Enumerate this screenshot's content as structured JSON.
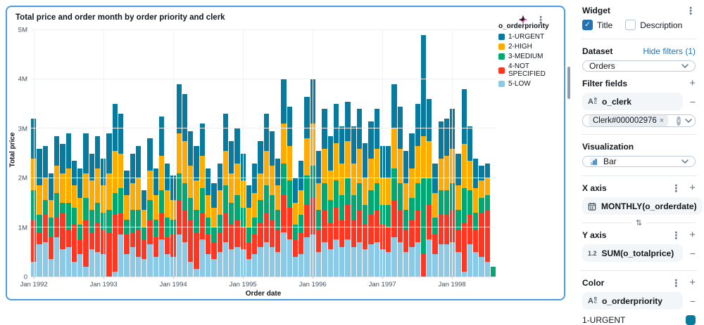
{
  "chart_card": {
    "title": "Total price and order month by order priority and clerk",
    "legend_title": "o_orderpriority",
    "x_axis_label": "Order date",
    "y_axis_label": "Total price",
    "icons": {
      "assistant": "ai-sparkle",
      "menu": "⋮"
    }
  },
  "chart_data": {
    "type": "bar",
    "stacked": true,
    "title": "Total price and order month by order priority and clerk",
    "xlabel": "Order date",
    "ylabel": "Total price",
    "ylim_millions": [
      0,
      5
    ],
    "y_ticks": [
      "0",
      "1M",
      "2M",
      "3M",
      "4M",
      "5M"
    ],
    "x_tick_positions": [
      0,
      12,
      24,
      36,
      48,
      60,
      72
    ],
    "x_tick_labels": [
      "Jan 1992",
      "Jan 1993",
      "Jan 1994",
      "Jan 1995",
      "Jan 1996",
      "Jan 1997",
      "Jan 1998"
    ],
    "legend_position": "top-right",
    "grid": true,
    "stack_order_bottom_to_top": [
      "5-LOW",
      "4-NOT SPECIFIED",
      "3-MEDIUM",
      "2-HIGH",
      "1-URGENT"
    ],
    "x_months": [
      "1992-01",
      "1992-02",
      "1992-03",
      "1992-04",
      "1992-05",
      "1992-06",
      "1992-07",
      "1992-08",
      "1992-09",
      "1992-10",
      "1992-11",
      "1992-12",
      "1993-01",
      "1993-02",
      "1993-03",
      "1993-04",
      "1993-05",
      "1993-06",
      "1993-07",
      "1993-08",
      "1993-09",
      "1993-10",
      "1993-11",
      "1993-12",
      "1994-01",
      "1994-02",
      "1994-03",
      "1994-04",
      "1994-05",
      "1994-06",
      "1994-07",
      "1994-08",
      "1994-09",
      "1994-10",
      "1994-11",
      "1994-12",
      "1995-01",
      "1995-02",
      "1995-03",
      "1995-04",
      "1995-05",
      "1995-06",
      "1995-07",
      "1995-08",
      "1995-09",
      "1995-10",
      "1995-11",
      "1995-12",
      "1996-01",
      "1996-02",
      "1996-03",
      "1996-04",
      "1996-05",
      "1996-06",
      "1996-07",
      "1996-08",
      "1996-09",
      "1996-10",
      "1996-11",
      "1996-12",
      "1997-01",
      "1997-02",
      "1997-03",
      "1997-04",
      "1997-05",
      "1997-06",
      "1997-07",
      "1997-08",
      "1997-09",
      "1997-10",
      "1997-11",
      "1997-12",
      "1998-01",
      "1998-02",
      "1998-03",
      "1998-04",
      "1998-05",
      "1998-06",
      "1998-07",
      "1998-08"
    ],
    "series": [
      {
        "name": "1-URGENT",
        "color": "#077A9D",
        "values_millions": [
          0.8,
          0.75,
          0.65,
          0.55,
          0.6,
          0.6,
          0.7,
          0.5,
          0.6,
          0.8,
          0.55,
          0.65,
          0.55,
          0.8,
          0.95,
          0.8,
          0.5,
          0.6,
          0.65,
          0.4,
          0.65,
          0.55,
          0.8,
          0.55,
          0.5,
          1.0,
          0.95,
          0.7,
          0.7,
          0.65,
          0.55,
          0.5,
          0.55,
          0.75,
          0.65,
          0.7,
          0.55,
          0.45,
          0.6,
          0.65,
          0.75,
          0.7,
          0.55,
          0.9,
          0.8,
          0.5,
          0.6,
          0.85,
          0.9,
          0.65,
          0.8,
          0.7,
          0.8,
          0.75,
          0.8,
          0.75,
          0.8,
          0.7,
          0.75,
          0.8,
          0.65,
          0.65,
          0.9,
          0.85,
          0.65,
          0.7,
          0.85,
          2.05,
          0.85,
          0.6,
          0.75,
          0.75,
          0.8,
          0.65,
          1.1,
          0.7,
          0.6,
          0.3,
          0.3,
          0.0
        ]
      },
      {
        "name": "2-HIGH",
        "color": "#FFAB00",
        "values_millions": [
          0.65,
          0.6,
          0.45,
          0.35,
          0.55,
          0.6,
          0.7,
          0.45,
          0.55,
          0.5,
          0.6,
          0.7,
          0.55,
          0.75,
          0.85,
          0.7,
          0.5,
          0.55,
          0.65,
          0.35,
          0.6,
          0.5,
          0.7,
          0.55,
          0.4,
          0.8,
          0.85,
          0.65,
          0.6,
          0.65,
          0.45,
          0.4,
          0.5,
          0.7,
          0.6,
          0.65,
          0.55,
          0.4,
          0.5,
          0.55,
          0.7,
          0.6,
          0.5,
          0.8,
          0.7,
          0.45,
          0.5,
          0.75,
          0.85,
          0.55,
          0.7,
          0.6,
          0.75,
          0.65,
          0.75,
          0.65,
          0.7,
          0.55,
          0.65,
          0.7,
          0.55,
          0.55,
          0.8,
          0.7,
          0.55,
          0.6,
          0.75,
          0.85,
          0.75,
          0.5,
          0.65,
          0.7,
          0.7,
          0.5,
          0.9,
          0.6,
          0.5,
          0.35,
          0.35,
          0.0
        ]
      },
      {
        "name": "3-MEDIUM",
        "color": "#00A972",
        "values_millions": [
          0.6,
          0.35,
          0.3,
          0.4,
          0.5,
          0.2,
          0.55,
          0.35,
          0.3,
          0.45,
          0.45,
          0.4,
          0.35,
          0.45,
          0.45,
          0.5,
          0.3,
          0.45,
          0.4,
          0.25,
          0.4,
          0.35,
          0.45,
          0.4,
          0.3,
          0.55,
          0.55,
          0.45,
          0.45,
          0.5,
          0.35,
          0.3,
          0.35,
          0.55,
          0.45,
          0.5,
          0.4,
          0.3,
          0.35,
          0.45,
          0.55,
          0.5,
          0.4,
          0.65,
          0.55,
          0.3,
          0.35,
          0.6,
          0.65,
          0.4,
          0.55,
          0.45,
          0.55,
          0.5,
          0.55,
          0.5,
          0.55,
          0.4,
          0.5,
          0.55,
          0.4,
          0.45,
          0.65,
          0.55,
          0.4,
          0.45,
          0.55,
          1.55,
          0.55,
          0.35,
          0.5,
          0.5,
          0.55,
          0.4,
          0.7,
          0.5,
          0.35,
          0.3,
          0.3,
          0.2
        ]
      },
      {
        "name": "4-NOT SPECIFIED",
        "color": "#FF3621",
        "values_millions": [
          0.85,
          0.25,
          0.55,
          0.45,
          0.4,
          0.75,
          0.35,
          0.75,
          0.3,
          0.95,
          0.35,
          0.6,
          0.5,
          0.9,
          1.15,
          0.45,
          0.4,
          0.3,
          0.55,
          0.4,
          0.5,
          0.4,
          0.55,
          0.35,
          0.45,
          0.7,
          0.65,
          0.85,
          0.75,
          0.55,
          0.4,
          0.35,
          0.4,
          0.6,
          0.5,
          0.55,
          0.45,
          0.35,
          0.4,
          0.5,
          0.6,
          0.55,
          0.45,
          0.75,
          0.65,
          0.35,
          0.45,
          0.65,
          0.75,
          0.45,
          0.65,
          0.55,
          0.65,
          0.55,
          0.7,
          0.55,
          0.65,
          0.5,
          0.6,
          0.65,
          0.5,
          0.5,
          0.75,
          0.65,
          0.45,
          0.55,
          0.65,
          0.45,
          0.7,
          0.4,
          0.6,
          0.6,
          0.65,
          0.45,
          1.0,
          0.6,
          0.45,
          0.9,
          1.05,
          0.0
        ]
      },
      {
        "name": "5-LOW",
        "color": "#8BCAE7",
        "values_millions": [
          0.3,
          0.65,
          0.7,
          0.35,
          0.8,
          0.55,
          0.6,
          0.3,
          0.45,
          0.2,
          0.55,
          0.5,
          0.45,
          0.0,
          0.1,
          0.85,
          0.45,
          0.6,
          0.4,
          0.35,
          0.65,
          0.4,
          0.75,
          0.45,
          0.4,
          0.85,
          0.7,
          0.3,
          0.15,
          0.75,
          0.45,
          0.35,
          0.5,
          0.7,
          0.55,
          0.6,
          0.55,
          0.35,
          0.45,
          0.6,
          0.7,
          0.6,
          0.5,
          0.9,
          0.75,
          0.4,
          0.45,
          0.8,
          0.85,
          0.5,
          0.7,
          0.55,
          0.75,
          0.6,
          0.75,
          0.6,
          0.7,
          0.55,
          0.65,
          0.7,
          0.55,
          0.5,
          0.8,
          0.7,
          0.5,
          0.6,
          0.7,
          0.0,
          0.75,
          0.45,
          0.65,
          0.65,
          0.7,
          0.5,
          0.1,
          0.65,
          0.5,
          0.4,
          0.3,
          0.0
        ]
      }
    ]
  },
  "panel": {
    "widget": {
      "title": "Widget",
      "checkboxes": [
        {
          "label": "Title",
          "checked": true
        },
        {
          "label": "Description",
          "checked": false
        }
      ]
    },
    "dataset": {
      "label": "Dataset",
      "hide_filters_link": "Hide filters (1)",
      "selected": "Orders"
    },
    "filter_fields": {
      "label": "Filter fields",
      "field": "o_clerk",
      "value": "Clerk#000002976"
    },
    "visualization": {
      "label": "Visualization",
      "selected": "Bar"
    },
    "x_axis": {
      "label": "X axis",
      "field": "MONTHLY(o_orderdate)"
    },
    "y_axis": {
      "label": "Y axis",
      "field": "SUM(o_totalprice)",
      "type_icon_text": "1.2"
    },
    "color": {
      "label": "Color",
      "field": "o_orderpriority",
      "preview_label": "1-URGENT"
    },
    "icons": {
      "letter_a": "A",
      "letter_b": "B",
      "letter_c": "C",
      "kebab": "⋮",
      "plus": "+",
      "minus": "−",
      "swap": "⇅",
      "close": "×",
      "check": "✓",
      "clear": "×"
    },
    "colors": {
      "accent_blue": "#2272B4",
      "card_border": "#4A9BE8"
    }
  }
}
